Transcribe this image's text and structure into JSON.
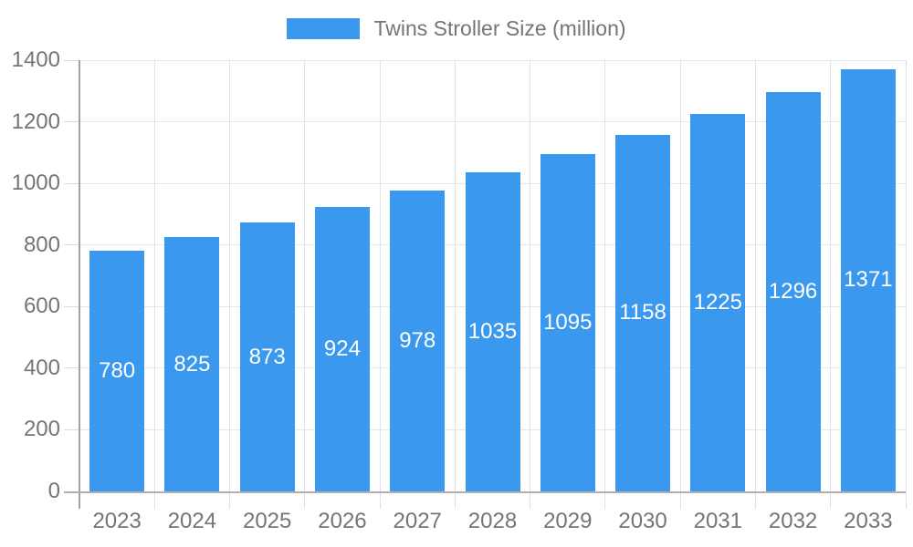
{
  "chart_data": {
    "type": "bar",
    "title": "Twins Stroller Size (million)",
    "series_name": "Twins Stroller Size (million)",
    "categories": [
      "2023",
      "2024",
      "2025",
      "2026",
      "2027",
      "2028",
      "2029",
      "2030",
      "2031",
      "2032",
      "2033"
    ],
    "values": [
      780,
      825,
      873,
      924,
      978,
      1035,
      1095,
      1158,
      1225,
      1296,
      1371
    ],
    "xlabel": "",
    "ylabel": "",
    "ylim": [
      0,
      1400
    ],
    "ystep": 200,
    "grid": true,
    "legend_position": "top-center",
    "bar_color": "#3A99EE",
    "bar_label_color": "#FFFFFF",
    "axis_text_color": "#757575"
  }
}
